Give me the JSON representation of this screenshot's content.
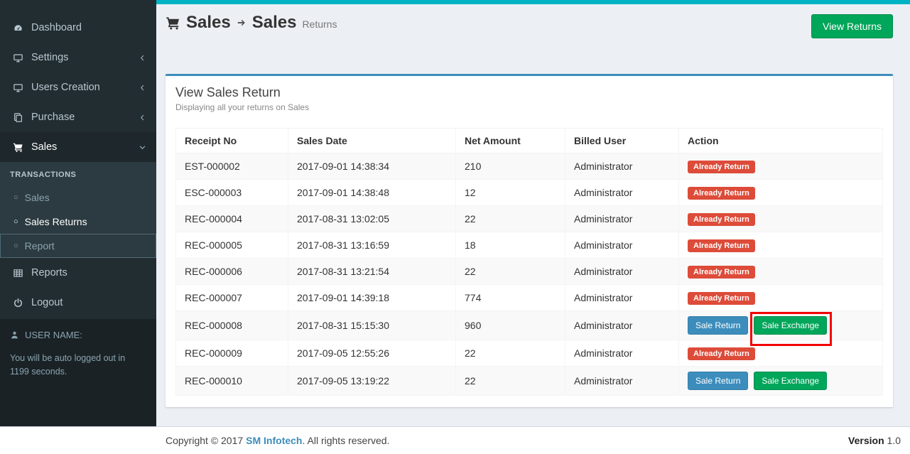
{
  "colors": {
    "topbar": "#00b4c5",
    "sidebar_bg": "#222d32",
    "sidebar_submenu_bg": "#2c3b41",
    "sidebar_panel_bg": "#1a2226",
    "content_bg": "#ecf0f5",
    "box_accent_blue": "#3c8dbc",
    "button_green": "#00a65a",
    "button_blue": "#3c8dbc",
    "badge_red": "#dd4b39",
    "annotation_red": "#f20505"
  },
  "sidebar": {
    "items": [
      {
        "label": "Dashboard",
        "icon": "dashboard-icon"
      },
      {
        "label": "Settings",
        "icon": "monitor-icon",
        "chevron": "left"
      },
      {
        "label": "Users Creation",
        "icon": "monitor-icon",
        "chevron": "left"
      },
      {
        "label": "Purchase",
        "icon": "copy-icon",
        "chevron": "left"
      },
      {
        "label": "Sales",
        "icon": "cart-icon",
        "chevron": "down",
        "active": true
      }
    ],
    "submenu_header": "TRANSACTIONS",
    "submenu": [
      {
        "label": "Sales"
      },
      {
        "label": "Sales Returns",
        "active": true
      },
      {
        "label": "Report"
      }
    ],
    "lower_items": [
      {
        "label": "Reports",
        "icon": "table-icon"
      },
      {
        "label": "Logout",
        "icon": "power-icon"
      }
    ],
    "user_label": "USER NAME:",
    "auto_logout_note": "You will be auto logged out in 1199 seconds."
  },
  "header": {
    "section": "Sales",
    "page_bold": "Sales",
    "page_small": "Returns",
    "view_returns_button": "View Returns"
  },
  "panel": {
    "title": "View Sales Return",
    "subtitle": "Displaying all your returns on Sales",
    "table": {
      "columns": [
        "Receipt No",
        "Sales Date",
        "Net Amount",
        "Billed User",
        "Action"
      ],
      "rows": [
        {
          "receipt": "EST-000002",
          "date": "2017-09-01 14:38:34",
          "amount": "210",
          "user": "Administrator",
          "action": "already"
        },
        {
          "receipt": "ESC-000003",
          "date": "2017-09-01 14:38:48",
          "amount": "12",
          "user": "Administrator",
          "action": "already"
        },
        {
          "receipt": "REC-000004",
          "date": "2017-08-31 13:02:05",
          "amount": "22",
          "user": "Administrator",
          "action": "already"
        },
        {
          "receipt": "REC-000005",
          "date": "2017-08-31 13:16:59",
          "amount": "18",
          "user": "Administrator",
          "action": "already"
        },
        {
          "receipt": "REC-000006",
          "date": "2017-08-31 13:21:54",
          "amount": "22",
          "user": "Administrator",
          "action": "already"
        },
        {
          "receipt": "REC-000007",
          "date": "2017-09-01 14:39:18",
          "amount": "774",
          "user": "Administrator",
          "action": "already"
        },
        {
          "receipt": "REC-000008",
          "date": "2017-08-31 15:15:30",
          "amount": "960",
          "user": "Administrator",
          "action": "buttons",
          "highlight": true
        },
        {
          "receipt": "REC-000009",
          "date": "2017-09-05 12:55:26",
          "amount": "22",
          "user": "Administrator",
          "action": "already"
        },
        {
          "receipt": "REC-000010",
          "date": "2017-09-05 13:19:22",
          "amount": "22",
          "user": "Administrator",
          "action": "buttons"
        }
      ]
    }
  },
  "labels": {
    "already_return": "Already Return",
    "sale_return": "Sale Return",
    "sale_exchange": "Sale Exchange"
  },
  "footer": {
    "copyright_prefix": "Copyright © 2017",
    "brand": "SM Infotech",
    "copyright_suffix": ". All rights reserved.",
    "version_label": "Version",
    "version_value": "1.0"
  }
}
